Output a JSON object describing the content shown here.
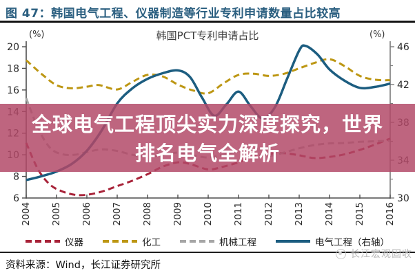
{
  "header": {
    "title": "图 47：韩国电气工程、仪器制造等行业专利申请数量占比较高"
  },
  "overlay": {
    "line1": "全球电气工程顶尖实力深度探究，世界",
    "line2": "排名电气全解析",
    "bg_color": "#b24866",
    "text_color": "#ffffff"
  },
  "source": {
    "label": "资料来源：Wind，长江证券研究所"
  },
  "watermark": {
    "label": "长江宏观固收"
  },
  "chart_data": {
    "type": "line",
    "title": "韩国PCT专利申请占比",
    "xlabel": "",
    "ylabel_left": "(%)",
    "ylabel_right": "(%)",
    "grid": false,
    "legend_position": "bottom",
    "x_axis": {
      "min": 2004,
      "max": 2016,
      "ticks": [
        2004,
        2005,
        2006,
        2007,
        2008,
        2009,
        2010,
        2011,
        2012,
        2013,
        2014,
        2015,
        2016
      ]
    },
    "left_axis": {
      "label": "(%)",
      "min": 6,
      "max": 20,
      "ticks": [
        6,
        8,
        10,
        12,
        14,
        16,
        18,
        20
      ]
    },
    "right_axis": {
      "label": "(%)",
      "min": 30,
      "max": 46,
      "ticks": [
        30,
        34,
        38,
        42,
        46
      ],
      "minor_ticks": [
        32,
        36,
        40,
        44
      ]
    },
    "series": [
      {
        "name": "仪器",
        "axis": "left",
        "color": "#a82339",
        "dashed": true,
        "points": [
          [
            2004,
            11.1
          ],
          [
            2004.4,
            8.6
          ],
          [
            2004.8,
            7.2
          ],
          [
            2005.2,
            6.6
          ],
          [
            2005.6,
            6.3
          ],
          [
            2006,
            6.3
          ],
          [
            2006.5,
            6.6
          ],
          [
            2007,
            7.1
          ],
          [
            2007.5,
            7.6
          ],
          [
            2008,
            8.2
          ],
          [
            2008.5,
            8.9
          ],
          [
            2009,
            9.3
          ],
          [
            2009.4,
            9.15
          ],
          [
            2010,
            8.65
          ],
          [
            2010.5,
            8.9
          ],
          [
            2011,
            9.3
          ],
          [
            2011.5,
            9.8
          ],
          [
            2012,
            10.05
          ],
          [
            2012.5,
            10.15
          ],
          [
            2013,
            9.95
          ],
          [
            2013.5,
            9.7
          ],
          [
            2014,
            9.8
          ],
          [
            2014.5,
            10.05
          ],
          [
            2015,
            10.45
          ],
          [
            2015.5,
            10.95
          ],
          [
            2016,
            11.5
          ]
        ]
      },
      {
        "name": "化工",
        "axis": "left",
        "color": "#bd9714",
        "dashed": true,
        "points": [
          [
            2004,
            18.75
          ],
          [
            2004.5,
            17.5
          ],
          [
            2005,
            16.45
          ],
          [
            2005.5,
            16.15
          ],
          [
            2006,
            16.3
          ],
          [
            2006.4,
            16.45
          ],
          [
            2007,
            16.05
          ],
          [
            2007.5,
            16.75
          ],
          [
            2008,
            17.4
          ],
          [
            2008.5,
            17.25
          ],
          [
            2009,
            16.5
          ],
          [
            2009.5,
            15.95
          ],
          [
            2010,
            15.7
          ],
          [
            2010.5,
            16.6
          ],
          [
            2011,
            17.4
          ],
          [
            2011.5,
            17.5
          ],
          [
            2012,
            17.3
          ],
          [
            2012.5,
            17.5
          ],
          [
            2013,
            18.0
          ],
          [
            2013.5,
            18.5
          ],
          [
            2014,
            18.85
          ],
          [
            2014.5,
            18.2
          ],
          [
            2015,
            17.3
          ],
          [
            2015.5,
            16.95
          ],
          [
            2016,
            16.9
          ]
        ]
      },
      {
        "name": "机械工程",
        "axis": "left",
        "color": "#a6a6a6",
        "dashed": true,
        "points": [
          [
            2004,
            15.25
          ],
          [
            2004.4,
            12.4
          ],
          [
            2004.8,
            10.6
          ],
          [
            2005.2,
            10.05
          ],
          [
            2005.6,
            10.0
          ],
          [
            2006,
            10.25
          ],
          [
            2006.5,
            10.5
          ],
          [
            2007,
            10.35
          ],
          [
            2007.5,
            10.0
          ],
          [
            2008,
            9.8
          ],
          [
            2008.5,
            10.0
          ],
          [
            2009,
            10.2
          ],
          [
            2009.5,
            9.95
          ],
          [
            2010,
            9.75
          ],
          [
            2010.5,
            10.0
          ],
          [
            2011,
            10.3
          ],
          [
            2011.5,
            10.1
          ],
          [
            2012,
            9.9
          ],
          [
            2012.5,
            10.2
          ],
          [
            2013,
            10.6
          ],
          [
            2013.5,
            10.9
          ],
          [
            2014,
            11.05
          ],
          [
            2014.5,
            11.1
          ],
          [
            2015,
            11.2
          ],
          [
            2015.5,
            11.25
          ],
          [
            2016,
            11.3
          ]
        ]
      },
      {
        "name": "电气工程（右轴）",
        "axis": "right",
        "color": "#1c5d80",
        "dashed": false,
        "points": [
          [
            2004,
            31.9
          ],
          [
            2004.5,
            32.3
          ],
          [
            2005,
            32.8
          ],
          [
            2005.5,
            33.6
          ],
          [
            2006,
            35.0
          ],
          [
            2006.5,
            37.2
          ],
          [
            2007,
            40.0
          ],
          [
            2007.5,
            41.6
          ],
          [
            2008,
            42.6
          ],
          [
            2008.5,
            43.2
          ],
          [
            2009,
            43.5
          ],
          [
            2009.4,
            42.8
          ],
          [
            2009.8,
            40.6
          ],
          [
            2010.2,
            38.7
          ],
          [
            2010.6,
            39.9
          ],
          [
            2011,
            41.25
          ],
          [
            2011.4,
            39.7
          ],
          [
            2011.8,
            38.4
          ],
          [
            2012.2,
            39.6
          ],
          [
            2012.6,
            42.6
          ],
          [
            2013,
            45.6
          ],
          [
            2013.2,
            46.1
          ],
          [
            2013.6,
            45.2
          ],
          [
            2014,
            43.6
          ],
          [
            2014.5,
            42.4
          ],
          [
            2015,
            41.65
          ],
          [
            2015.5,
            41.75
          ],
          [
            2016,
            42.1
          ]
        ]
      }
    ]
  }
}
